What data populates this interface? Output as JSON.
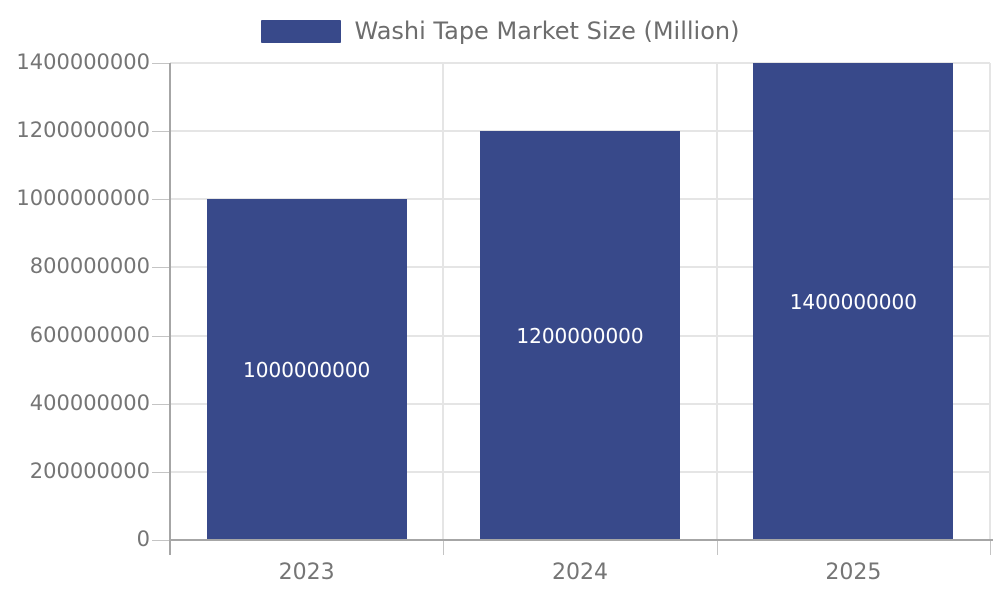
{
  "chart_data": {
    "type": "bar",
    "title": "Washi Tape Market Size (Million)",
    "legend": {
      "position": "top",
      "entries": [
        "Washi Tape Market Size (Million)"
      ]
    },
    "categories": [
      "2023",
      "2024",
      "2025"
    ],
    "values": [
      1000000000,
      1200000000,
      1400000000
    ],
    "bar_labels": [
      "1000000000",
      "1200000000",
      "1400000000"
    ],
    "xlabel": "",
    "ylabel": "",
    "ylim": [
      0,
      1400000000
    ],
    "ytick_interval": 200000000,
    "ytick_labels": [
      "0",
      "200000000",
      "400000000",
      "600000000",
      "800000000",
      "1000000000",
      "1200000000",
      "1400000000"
    ],
    "grid": true,
    "colors": {
      "bar": "#38498a",
      "bar_label": "#ffffff",
      "grid_line": "#e5e5e5",
      "axis_line": "#a6a6a6",
      "tick_mark": "#c4c4c4",
      "tick_label": "#757575",
      "legend_text": "#6d6d6d",
      "background": "#ffffff"
    }
  }
}
